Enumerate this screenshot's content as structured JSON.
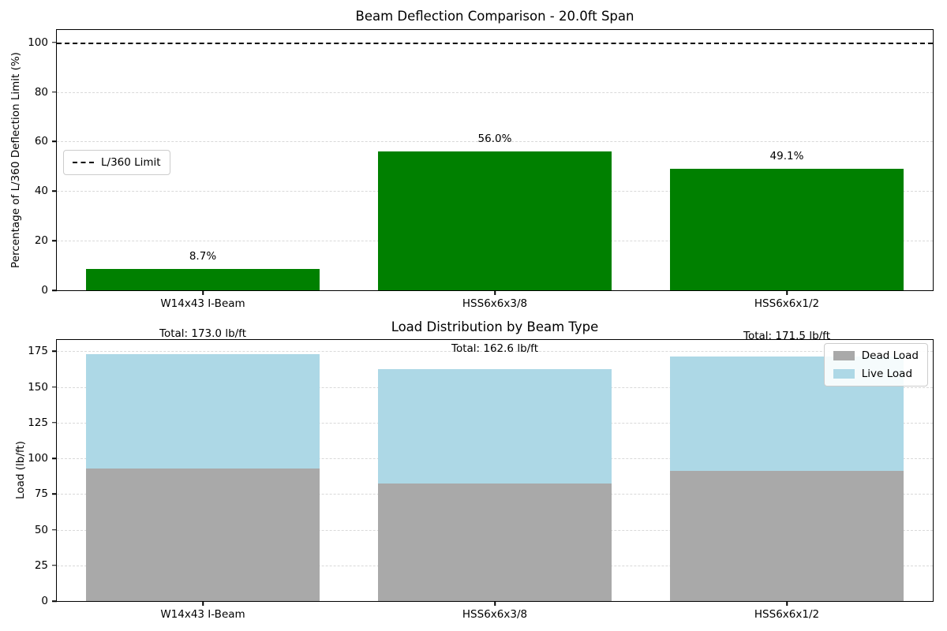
{
  "figure": {
    "background": "#ffffff"
  },
  "chart_data": [
    {
      "type": "bar",
      "title": "Beam Deflection Comparison - 20.0ft Span",
      "ylabel": "Percentage of L/360 Deflection Limit (%)",
      "xlabel": "",
      "categories": [
        "W14x43 I-Beam",
        "HSS6x6x3/8",
        "HSS6x6x1/2"
      ],
      "values": [
        8.7,
        56.0,
        49.1
      ],
      "value_labels": [
        "8.7%",
        "56.0%",
        "49.1%"
      ],
      "bar_color": "#008000",
      "yticks": [
        0,
        20,
        40,
        60,
        80,
        100
      ],
      "ylim": [
        0,
        105
      ],
      "grid": "y-dashed",
      "legend_position": "center-left",
      "limit_line": {
        "value": 100,
        "style": "dashed",
        "color": "#000000",
        "label": "L/360 Limit"
      },
      "legend_items": [
        {
          "label": "L/360 Limit",
          "swatch": "dashed-line",
          "color": "#000000"
        }
      ]
    },
    {
      "type": "stacked-bar",
      "title": "Load Distribution by Beam Type",
      "ylabel": "Load (lb/ft)",
      "xlabel": "",
      "categories": [
        "W14x43 I-Beam",
        "HSS6x6x3/8",
        "HSS6x6x1/2"
      ],
      "series": [
        {
          "name": "Dead Load",
          "color": "#a9a9a9",
          "values": [
            93.0,
            82.6,
            91.5
          ]
        },
        {
          "name": "Live Load",
          "color": "#add8e6",
          "values": [
            80.0,
            80.0,
            80.0
          ]
        }
      ],
      "totals": [
        173.0,
        162.6,
        171.5
      ],
      "total_labels": [
        "Total: 173.0 lb/ft",
        "Total: 162.6 lb/ft",
        "Total: 171.5 lb/ft"
      ],
      "yticks": [
        0,
        25,
        50,
        75,
        100,
        125,
        150,
        175
      ],
      "ylim": [
        0,
        183
      ],
      "grid": "y-dashed",
      "legend_position": "top-right",
      "legend_items": [
        {
          "label": "Dead Load",
          "swatch": "patch",
          "color": "#a9a9a9"
        },
        {
          "label": "Live Load",
          "swatch": "patch",
          "color": "#add8e6"
        }
      ]
    }
  ]
}
